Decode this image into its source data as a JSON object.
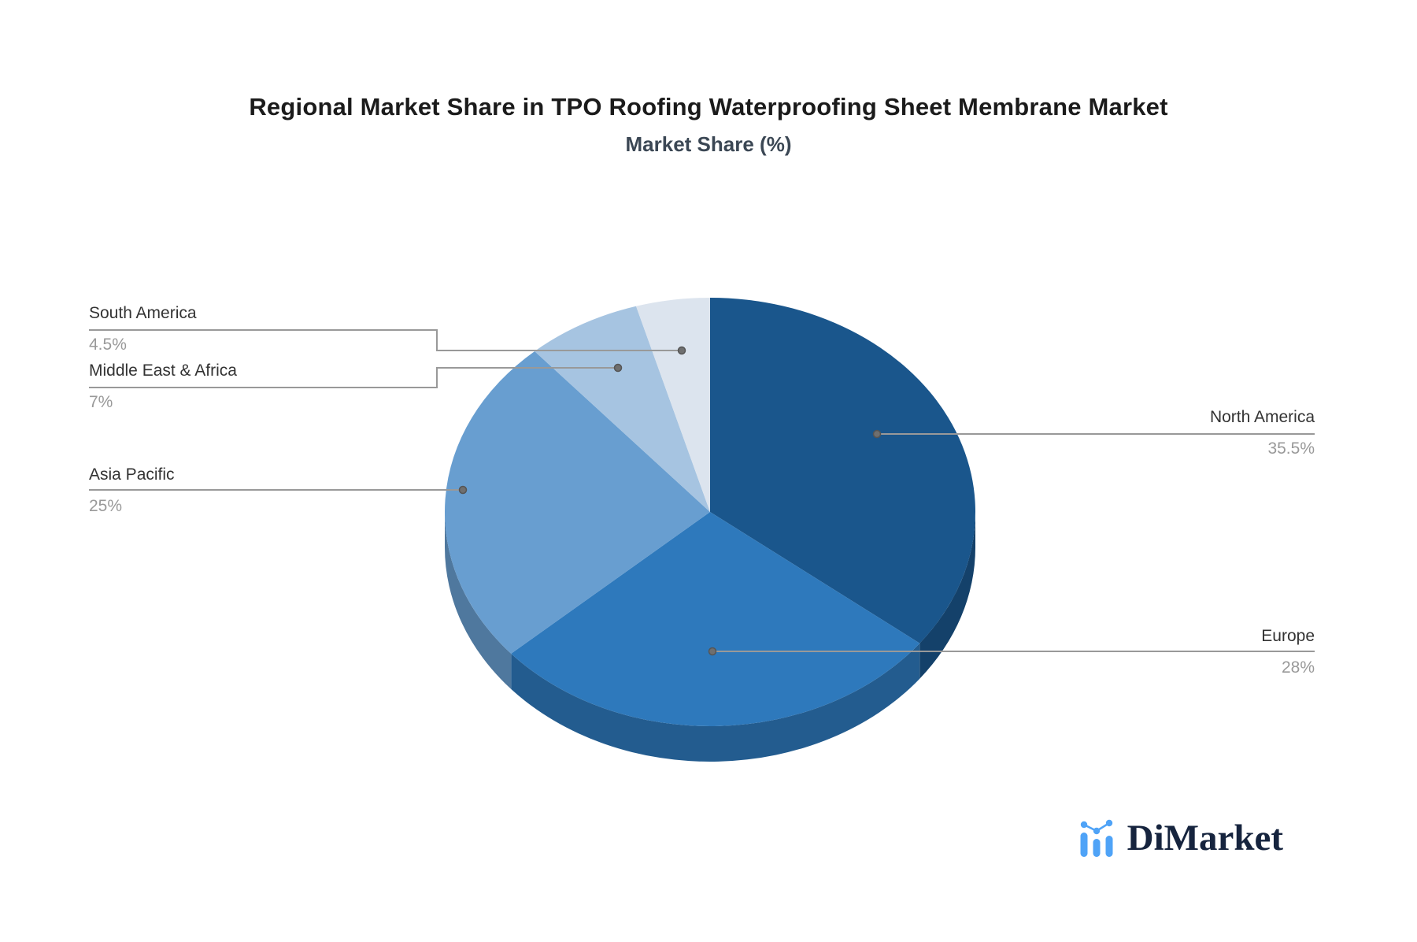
{
  "chart_data": {
    "type": "pie",
    "title": "Regional Market Share in TPO Roofing Waterproofing Sheet Membrane Market",
    "subtitle": "Market Share (%)",
    "unit": "%",
    "start_angle_deg": 0,
    "direction": "clockwise",
    "style": "3d-depth",
    "slices": [
      {
        "label": "North America",
        "value": 35.5,
        "value_label": "35.5%",
        "color": "#1A568C"
      },
      {
        "label": "Europe",
        "value": 28,
        "value_label": "28%",
        "color": "#2E79BC"
      },
      {
        "label": "Asia Pacific",
        "value": 25,
        "value_label": "25%",
        "color": "#689ED0"
      },
      {
        "label": "Middle East & Africa",
        "value": 7,
        "value_label": "7%",
        "color": "#A6C4E1"
      },
      {
        "label": "South America",
        "value": 4.5,
        "value_label": "4.5%",
        "color": "#DCE4EE"
      }
    ],
    "label_text_color": "#333333",
    "value_text_color": "#999999",
    "leader_line_color": "#999999"
  },
  "branding": {
    "logo_text": "DiMarket",
    "logo_accent_color": "#4FA3F7"
  }
}
